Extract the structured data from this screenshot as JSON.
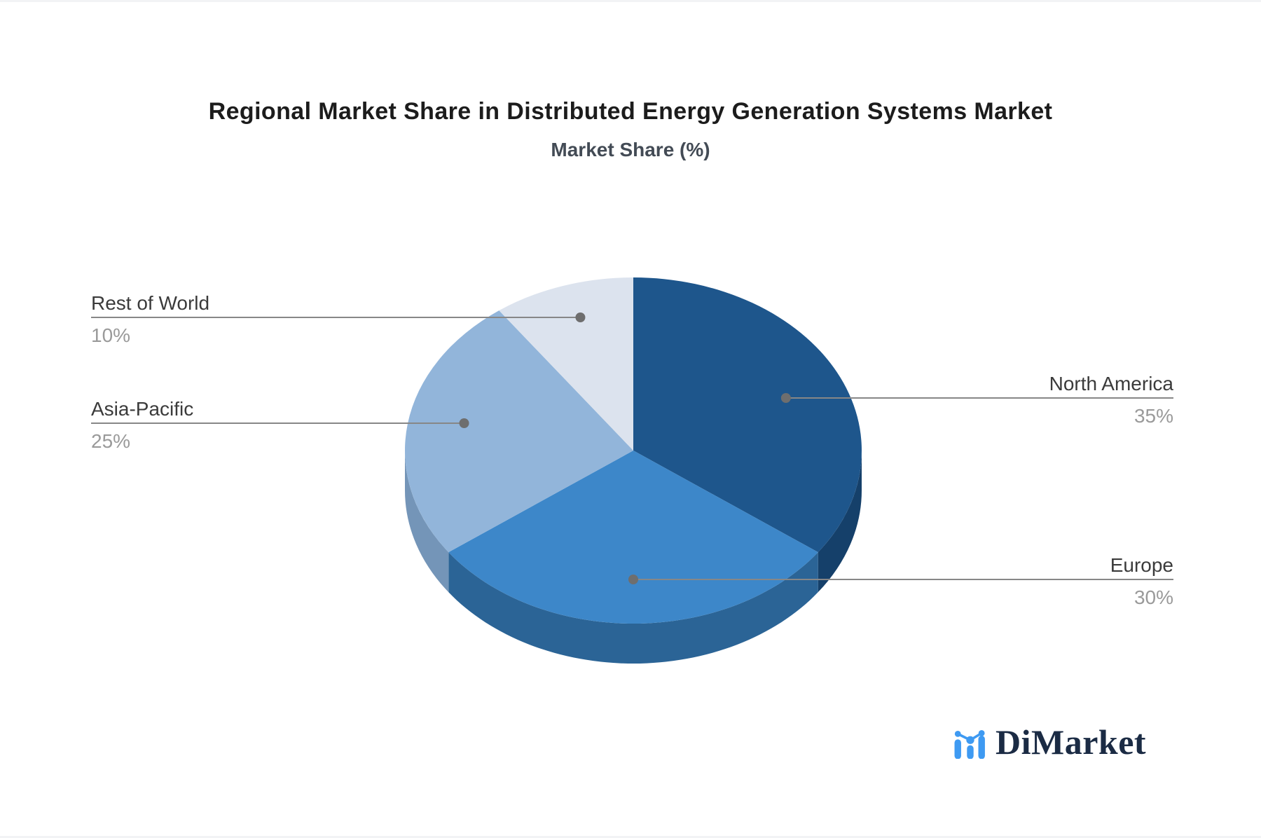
{
  "chart_data": {
    "type": "pie",
    "title": "Regional Market Share in Distributed Energy Generation Systems Market",
    "subtitle": "Market Share (%)",
    "unit": "%",
    "style": "3d-pie",
    "direction": "clockwise",
    "start_angle_deg": 0,
    "legend": "none (callout labels with leader lines and dots)",
    "slices": [
      {
        "label": "North America",
        "value": 35,
        "display": "35%",
        "color": "#1E568C",
        "side_color": "#15406A"
      },
      {
        "label": "Europe",
        "value": 30,
        "display": "30%",
        "color": "#3D87C9",
        "side_color": "#2B6496"
      },
      {
        "label": "Asia-Pacific",
        "value": 25,
        "display": "25%",
        "color": "#92B5DA",
        "side_color": "#7495B8"
      },
      {
        "label": "Rest of World",
        "value": 10,
        "display": "10%",
        "color": "#DCE3EE",
        "side_color": "#B9C5D8"
      }
    ]
  },
  "colors": {
    "background": "#FFFFFF",
    "title_text": "#1C1C1C",
    "subtitle_text": "#434B55",
    "label_text": "#3B3B3B",
    "value_text": "#9A9A9A",
    "callout_line": "#878787",
    "callout_dot": "#6E6E6E"
  },
  "branding": {
    "logo_text": "DiMarket",
    "logo_icon": "bar-chart-trend-icon",
    "logo_icon_color": "#3E9AF2",
    "logo_text_color": "#1B2B44"
  }
}
